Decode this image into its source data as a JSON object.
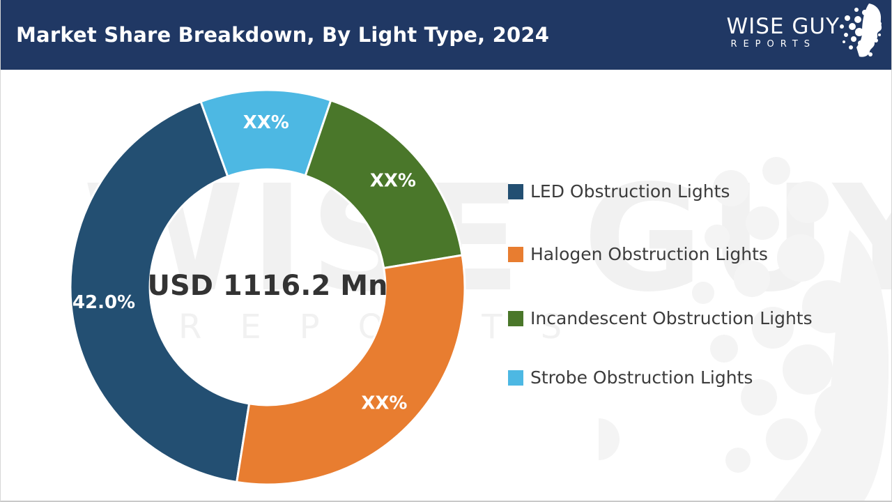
{
  "header": {
    "title": "Market Share Breakdown, By Light Type, 2024",
    "bg_color": "#203864"
  },
  "logo": {
    "line1": "WISE GUY",
    "line2": "REPORTS"
  },
  "watermark": {
    "line1": "WISE GUY",
    "line2": "REPORTS"
  },
  "chart_data": {
    "type": "pie",
    "subtype": "donut",
    "title": "Market Share Breakdown, By Light Type, 2024",
    "center_label": "USD 1116.2 Mn",
    "start_angle_deg": 189,
    "note": "Only LED share is disclosed (42.0%); other slice labels are masked as XX%. Values below are arc-angle estimates.",
    "segments": [
      {
        "name": "LED Obstruction Lights",
        "label": "42.0%",
        "value": 42.0,
        "color": "#234F72"
      },
      {
        "name": "Strobe Obstruction Lights",
        "label": "XX%",
        "value": 10.7,
        "color": "#4DB8E3"
      },
      {
        "name": "Incandescent Obstruction Lights",
        "label": "XX%",
        "value": 17.2,
        "color": "#4A772A"
      },
      {
        "name": "Halogen Obstruction Lights",
        "label": "XX%",
        "value": 30.1,
        "color": "#E87D30"
      }
    ],
    "legend_position": "right"
  },
  "legend": {
    "items": [
      {
        "label": "LED Obstruction Lights",
        "color": "#234F72"
      },
      {
        "label": "Halogen Obstruction Lights",
        "color": "#E87D30"
      },
      {
        "label": "Incandescent Obstruction Lights",
        "color": "#4A772A"
      },
      {
        "label": "Strobe Obstruction Lights",
        "color": "#4DB8E3"
      }
    ]
  }
}
